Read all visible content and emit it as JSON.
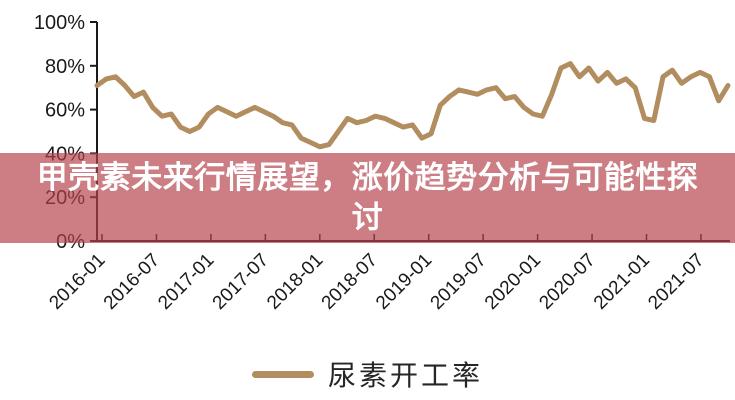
{
  "banner": {
    "text": "甲壳素未来行情展望，涨价趋势分析与可能性探讨",
    "background": "rgba(180,65,74,0.68)",
    "text_color": "#ffffff"
  },
  "legend": {
    "label": "尿素开工率",
    "swatch_color": "#b18d5f"
  },
  "colors": {
    "axis": "#1a1a1a",
    "tick_label": "#1a1a1a",
    "series": "#b18d5f"
  },
  "chart_data": {
    "type": "line",
    "title": "",
    "xlabel": "",
    "ylabel": "",
    "ylim": [
      0,
      100
    ],
    "grid": false,
    "legend_position": "bottom",
    "y_tick_labels": [
      "0%",
      "20%",
      "40%",
      "60%",
      "80%",
      "100%"
    ],
    "x_tick_labels": [
      "2016-01",
      "2016-07",
      "2017-01",
      "2017-07",
      "2018-01",
      "2018-07",
      "2019-01",
      "2019-07",
      "2020-01",
      "2020-07",
      "2021-01",
      "2021-07"
    ],
    "series": [
      {
        "name": "尿素开工率",
        "color": "#b18d5f",
        "start_month": "2016-01",
        "interval": "monthly",
        "unit": "%",
        "values": [
          71,
          74,
          75,
          71,
          66,
          68,
          61,
          57,
          58,
          52,
          50,
          52,
          58,
          61,
          59,
          57,
          59,
          61,
          59,
          57,
          54,
          53,
          47,
          45,
          43,
          44,
          50,
          56,
          54,
          55,
          57,
          56,
          54,
          52,
          53,
          47,
          49,
          62,
          66,
          69,
          68,
          67,
          69,
          70,
          65,
          66,
          61,
          58,
          57,
          67,
          79,
          81,
          75,
          79,
          73,
          77,
          72,
          74,
          70,
          56,
          55,
          75,
          78,
          72,
          75,
          77,
          75,
          64,
          71
        ]
      }
    ]
  }
}
